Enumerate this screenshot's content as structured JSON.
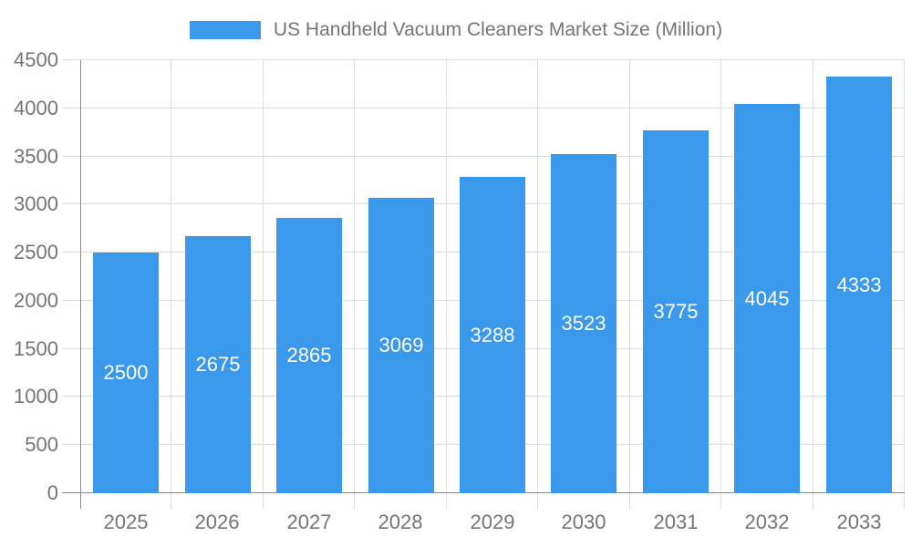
{
  "chart_data": {
    "type": "bar",
    "title": "US Handheld Vacuum Cleaners Market Size (Million)",
    "categories": [
      "2025",
      "2026",
      "2027",
      "2028",
      "2029",
      "2030",
      "2031",
      "2032",
      "2033"
    ],
    "values": [
      2500,
      2675,
      2865,
      3069,
      3288,
      3523,
      3775,
      4045,
      4333
    ],
    "series": [
      {
        "name": "US Handheld Vacuum Cleaners Market Size (Million)",
        "values": [
          2500,
          2675,
          2865,
          3069,
          3288,
          3523,
          3775,
          4045,
          4333
        ]
      }
    ],
    "xlabel": "",
    "ylabel": "",
    "ylim": [
      0,
      4500
    ],
    "y_ticks": [
      0,
      500,
      1000,
      1500,
      2000,
      2500,
      3000,
      3500,
      4000,
      4500
    ],
    "grid": true,
    "legend_position": "top",
    "data_labels_inside_bars": true,
    "colors": {
      "bar": "#3B99EC",
      "bar_label": "#FFFFFF",
      "grid": "#DDDDDD",
      "axis": "#888888",
      "tick_text": "#757575",
      "legend_text": "#757575",
      "background": "#FFFFFF"
    }
  },
  "legend": {
    "label": "US Handheld Vacuum Cleaners Market Size (Million)"
  }
}
